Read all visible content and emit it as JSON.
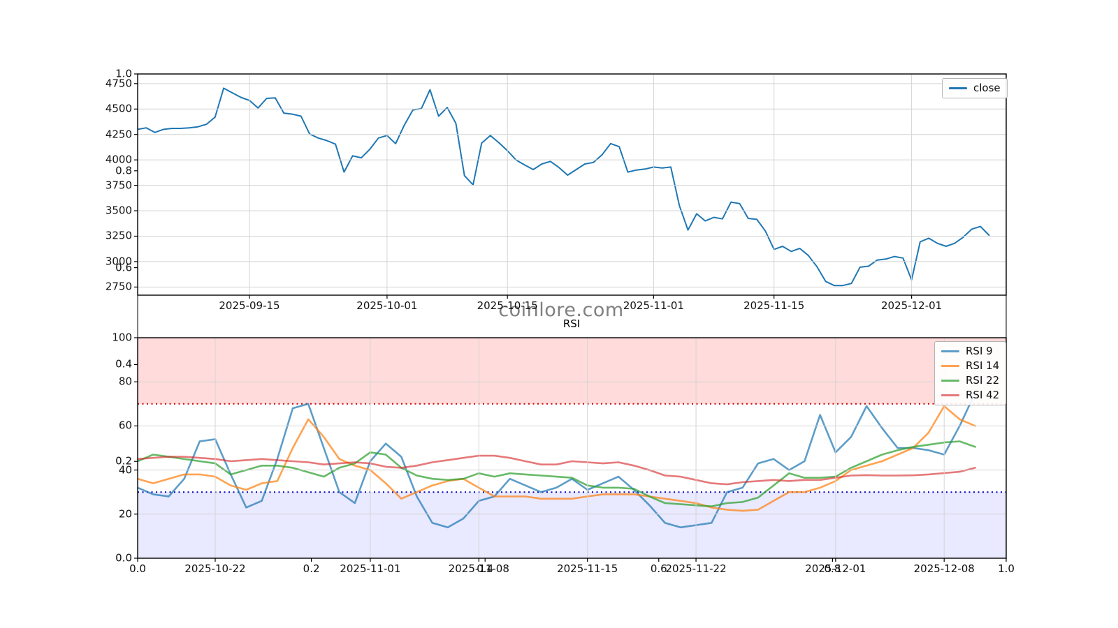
{
  "watermark": "coinlore.com",
  "overlay_axis": {
    "yticks": [
      "1.0",
      "0.8",
      "0.6",
      "0.4",
      "0.2",
      "0.0"
    ],
    "xticks": [
      "0.0",
      "0.2",
      "0.4",
      "0.6",
      "0.8",
      "1.0"
    ]
  },
  "chart_data": [
    {
      "name": "price",
      "type": "line",
      "title": "",
      "legend_position": "upper right",
      "grid": true,
      "x_start": "2025-09-02",
      "x_pad_days": 2,
      "ylim": [
        2670,
        4845
      ],
      "yticks": [
        4750,
        4500,
        4250,
        4000,
        3750,
        3500,
        3250,
        3000,
        2750
      ],
      "xticks": [
        "2025-09-15",
        "2025-10-01",
        "2025-10-15",
        "2025-11-01",
        "2025-11-15",
        "2025-12-01"
      ],
      "series": [
        {
          "name": "close",
          "color": "#1f77b4",
          "width": 2,
          "values": [
            4300,
            4315,
            4270,
            4300,
            4310,
            4310,
            4315,
            4325,
            4350,
            4420,
            4705,
            4660,
            4615,
            4585,
            4510,
            4605,
            4610,
            4460,
            4450,
            4430,
            4255,
            4215,
            4190,
            4155,
            3880,
            4040,
            4020,
            4105,
            4215,
            4240,
            4160,
            4340,
            4490,
            4505,
            4690,
            4430,
            4515,
            4360,
            3845,
            3755,
            4165,
            4240,
            4170,
            4090,
            4000,
            3950,
            3905,
            3960,
            3985,
            3925,
            3850,
            3905,
            3960,
            3975,
            4050,
            4160,
            4130,
            3880,
            3900,
            3910,
            3930,
            3920,
            3930,
            3550,
            3310,
            3470,
            3400,
            3435,
            3420,
            3585,
            3570,
            3425,
            3415,
            3300,
            3120,
            3150,
            3100,
            3130,
            3060,
            2950,
            2805,
            2765,
            2765,
            2785,
            2945,
            2955,
            3015,
            3025,
            3050,
            3035,
            2820,
            3195,
            3230,
            3180,
            3150,
            3180,
            3240,
            3320,
            3345,
            3260
          ]
        }
      ]
    },
    {
      "name": "rsi",
      "type": "line",
      "title": "RSI",
      "legend_position": "upper right",
      "grid": true,
      "x_start": "2025-10-17",
      "x_pad_days": 2,
      "ylim": [
        0,
        100
      ],
      "yticks": [
        100,
        80,
        60,
        40,
        20
      ],
      "xticks": [
        "2025-10-22",
        "2025-11-01",
        "2025-11-08",
        "2025-11-15",
        "2025-11-22",
        "2025-12-01",
        "2025-12-08"
      ],
      "bands": [
        {
          "from": 70,
          "to": 100,
          "color": "rgba(255,0,0,0.14)",
          "meaning": "overbought"
        },
        {
          "from": 0,
          "to": 30,
          "color": "rgba(40,40,255,0.10)",
          "meaning": "oversold"
        }
      ],
      "hlines": [
        {
          "y": 70,
          "color": "#cc0000",
          "style": "dotted"
        },
        {
          "y": 30,
          "color": "#0000bb",
          "style": "dotted"
        }
      ],
      "series": [
        {
          "name": "RSI 9",
          "color": "rgba(31,119,180,0.72)",
          "width": 2.6,
          "values": [
            32,
            29,
            28,
            36,
            53,
            54,
            38,
            23,
            26,
            45,
            68,
            70,
            50,
            30,
            25,
            44,
            52,
            46,
            28,
            16,
            14,
            18,
            26,
            28,
            36,
            33,
            30,
            32,
            36,
            31,
            34,
            37,
            31,
            24,
            16,
            14,
            15,
            16,
            30,
            32,
            43,
            45,
            40,
            44,
            65,
            48,
            55,
            69,
            59,
            50,
            50,
            49,
            47,
            60,
            75
          ]
        },
        {
          "name": "RSI 14",
          "color": "rgba(255,127,14,0.72)",
          "width": 2.6,
          "values": [
            36,
            34,
            36,
            38,
            38,
            37,
            33,
            31,
            34,
            35,
            50,
            63,
            55,
            45,
            42,
            40,
            34,
            27,
            30,
            33,
            35,
            36,
            32,
            28,
            28,
            28,
            27,
            27,
            27,
            28,
            29,
            29,
            29,
            28,
            27,
            26,
            25,
            23,
            22,
            21.5,
            22,
            26,
            30,
            30,
            32,
            35,
            40,
            42,
            44,
            47,
            50,
            57,
            69,
            63,
            60
          ]
        },
        {
          "name": "RSI 22",
          "color": "rgba(44,160,44,0.72)",
          "width": 2.6,
          "values": [
            44,
            47,
            46,
            45,
            44,
            43,
            38,
            40,
            42,
            42,
            41,
            39,
            37,
            41,
            43,
            48,
            47,
            41,
            37.5,
            36,
            35.5,
            36,
            38.5,
            37,
            38.5,
            38,
            37.5,
            37,
            36.5,
            33,
            32,
            32,
            31.5,
            28,
            25,
            24.5,
            24,
            23.5,
            25,
            25.5,
            27.5,
            33,
            38.5,
            36.5,
            36.5,
            37,
            41,
            44,
            47,
            49,
            50.5,
            51.5,
            52.5,
            53,
            50.5
          ]
        },
        {
          "name": "RSI 42",
          "color": "rgba(214,39,40,0.62)",
          "width": 2.6,
          "values": [
            45,
            45.5,
            46,
            46,
            45.5,
            45,
            44,
            44.5,
            45,
            44.5,
            44,
            43.5,
            42.5,
            43,
            43.5,
            43,
            41.5,
            41,
            42,
            43.5,
            44.5,
            45.5,
            46.5,
            46.5,
            45.5,
            44,
            42.5,
            42.5,
            44,
            43.5,
            43,
            43.5,
            42,
            40,
            37.5,
            37,
            35.5,
            34,
            33.5,
            34.5,
            35,
            35.5,
            35,
            35.5,
            35.5,
            36.5,
            37.5,
            37.7,
            37.5,
            37.5,
            37.6,
            38,
            38.6,
            39.2,
            41
          ]
        }
      ]
    }
  ]
}
